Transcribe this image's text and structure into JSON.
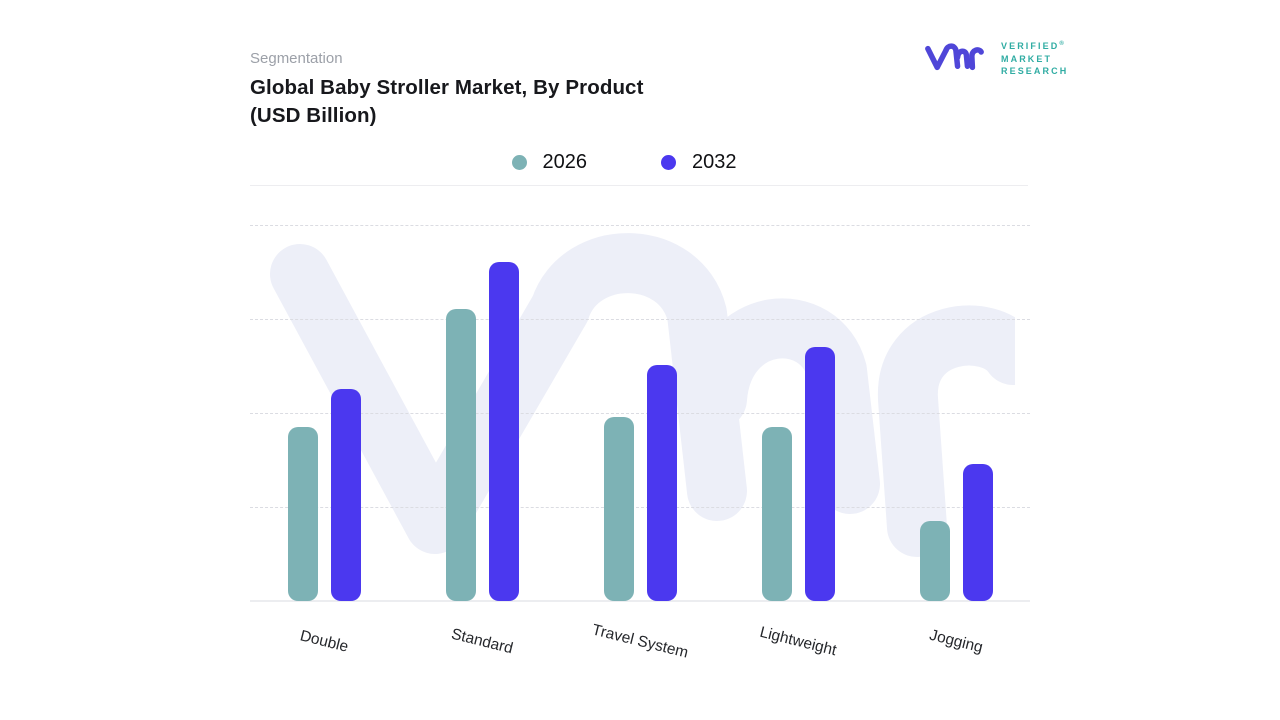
{
  "header": {
    "eyebrow": "Segmentation",
    "title_line1": "Global Baby Stroller Market, By Product",
    "title_line2": "(USD Billion)"
  },
  "logo": {
    "brand_line1": "VERIFIED",
    "registered_mark": "®",
    "brand_line2": "MARKET",
    "brand_line3": "RESEARCH",
    "monogram_color": "#4F46D8",
    "text_color": "#30ACA3"
  },
  "legend": {
    "items": [
      {
        "label": "2026",
        "color": "#7DB2B5"
      },
      {
        "label": "2032",
        "color": "#4B38EF"
      }
    ]
  },
  "chart_data": {
    "type": "bar",
    "title": "Global Baby Stroller Market, By Product (USD Billion)",
    "categories": [
      "Double",
      "Standard",
      "Travel System",
      "Lightweight",
      "Jogging"
    ],
    "series": [
      {
        "name": "2026",
        "color": "#7DB2B5",
        "values": [
          1.85,
          3.1,
          1.95,
          1.85,
          0.85
        ]
      },
      {
        "name": "2032",
        "color": "#4B38EF",
        "values": [
          2.25,
          3.6,
          2.5,
          2.7,
          1.45
        ]
      }
    ],
    "xlabel": "",
    "ylabel": "",
    "ylim": [
      0,
      4
    ],
    "y_axis_labels_visible": false,
    "value_scale": "gridline units; no numeric axis labels shown in image",
    "grid": "horizontal-dashed",
    "legend_position": "top-center"
  },
  "watermark": {
    "text": "vmr",
    "color": "#EDEFF8"
  }
}
